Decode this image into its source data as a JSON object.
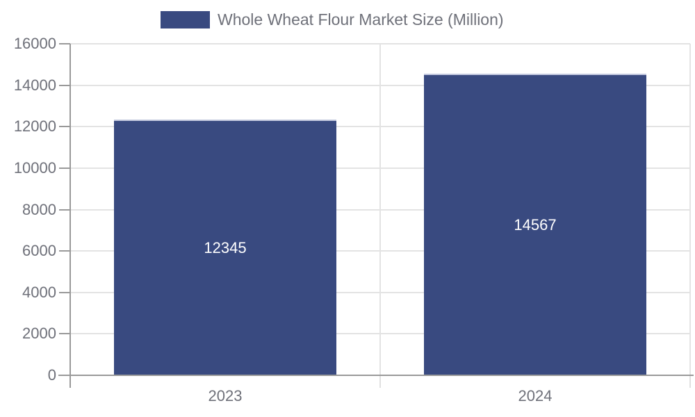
{
  "legend": {
    "label": "Whole Wheat Flour Market Size (Million)"
  },
  "chart_data": {
    "type": "bar",
    "title": "",
    "legend_entries": [
      "Whole Wheat Flour Market Size (Million)"
    ],
    "legend_position": "top",
    "categories": [
      "2023",
      "2024"
    ],
    "series": [
      {
        "name": "Whole Wheat Flour Market Size (Million)",
        "values": [
          12345,
          14567
        ]
      }
    ],
    "value_labels": [
      "12345",
      "14567"
    ],
    "xlabel": "",
    "ylabel": "",
    "ylim": [
      0,
      16000
    ],
    "ytick_step": 2000,
    "ytick_labels": [
      "0",
      "2000",
      "4000",
      "6000",
      "8000",
      "10000",
      "12000",
      "14000",
      "16000"
    ],
    "grid": true,
    "colors": {
      "bar": "#394A80",
      "grid_line": "#E3E3E3",
      "axis_line": "#999999",
      "boundary_tick": "#E0E0E0",
      "tick_text": "#6E7079",
      "value_label_text": "#FFFFFF"
    }
  }
}
